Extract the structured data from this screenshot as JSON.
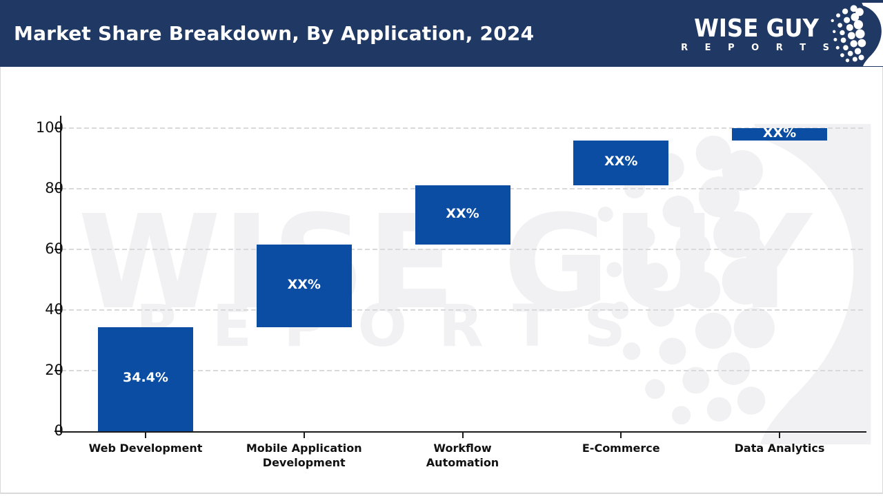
{
  "header": {
    "title": "Market Share Breakdown, By Application, 2024",
    "bg_color": "#1f3864",
    "logo": {
      "line1": "WISE GUY",
      "line2": "R E P O R T S"
    }
  },
  "watermark": {
    "line1": "WISE GUY",
    "line2": "REPORTS"
  },
  "chart_data": {
    "type": "bar",
    "subtype": "waterfall",
    "title": "Market Share Breakdown, By Application, 2024",
    "categories": [
      "Web Development",
      "Mobile Application Development",
      "Workflow Automation",
      "E-Commerce",
      "Data Analytics"
    ],
    "x_label_lines": [
      [
        "Web Development"
      ],
      [
        "Mobile Application",
        "Development"
      ],
      [
        "Workflow",
        "Automation"
      ],
      [
        "E-Commerce"
      ],
      [
        "Data Analytics"
      ]
    ],
    "segments": [
      {
        "category": "Web Development",
        "start": 0,
        "end": 34.4,
        "value": 34.4,
        "value_label": "34.4%"
      },
      {
        "category": "Mobile Application Development",
        "start": 34.4,
        "end": 61.6,
        "value": 27.2,
        "value_label": "XX%"
      },
      {
        "category": "Workflow Automation",
        "start": 61.6,
        "end": 81.2,
        "value": 19.6,
        "value_label": "XX%"
      },
      {
        "category": "E-Commerce",
        "start": 81.2,
        "end": 96.0,
        "value": 14.8,
        "value_label": "XX%"
      },
      {
        "category": "Data Analytics",
        "start": 96.0,
        "end": 100.0,
        "value": 4.0,
        "value_label": "XX%"
      }
    ],
    "yticks": [
      0,
      20,
      40,
      60,
      80,
      100
    ],
    "ylim": [
      0,
      104
    ],
    "xlabel": "",
    "ylabel": "",
    "bar_color": "#0b4da2",
    "bar_label_color": "#ffffff",
    "grid": "horizontal-dashed",
    "legend": "none"
  }
}
